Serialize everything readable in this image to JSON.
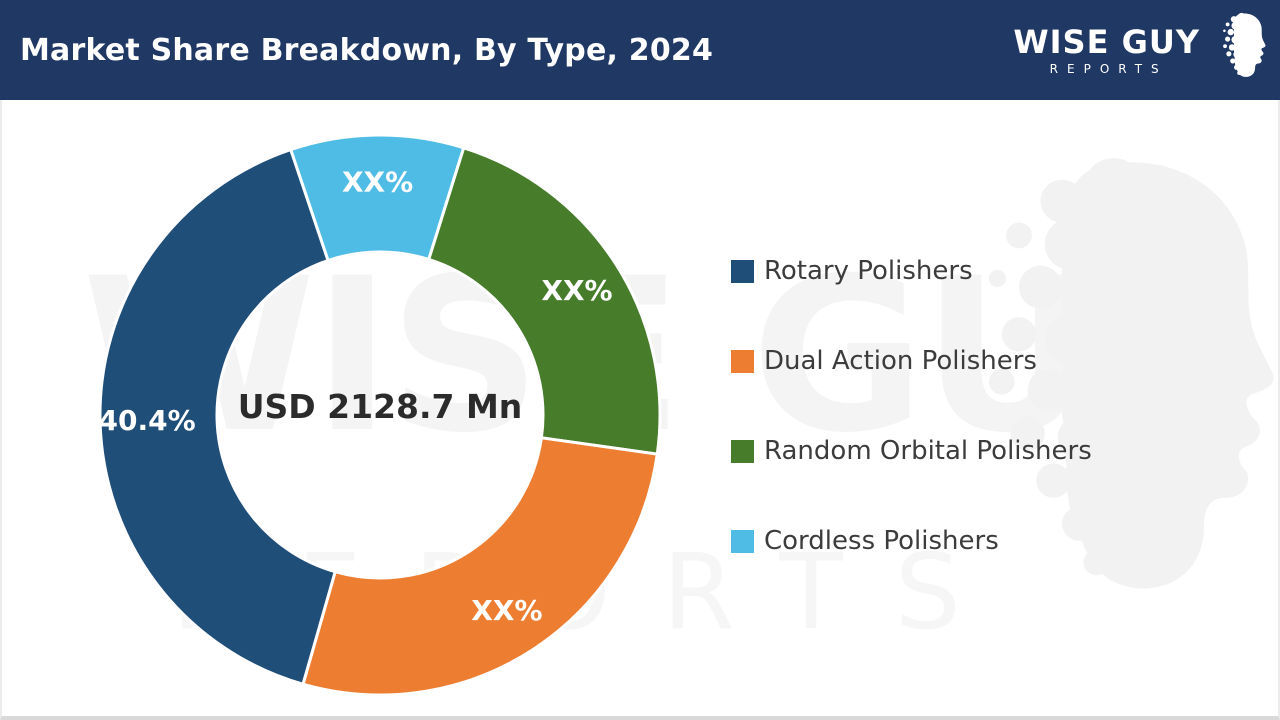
{
  "header": {
    "title": "Market Share Breakdown, By Type, 2024",
    "logo": {
      "name": "WISE GUY",
      "subname": "REPORTS"
    }
  },
  "watermark": {
    "line1": "WISE GUY",
    "line2": "REPORTS"
  },
  "chart_data": {
    "type": "pie",
    "subtype": "donut",
    "title": "Market Share Breakdown, By Type, 2024",
    "center_label": "USD 2128.7 Mn",
    "legend_position": "right",
    "start_angle_deg": -18.6,
    "clockwise_order": [
      "Cordless Polishers",
      "Random Orbital Polishers",
      "Dual Action Polishers",
      "Rotary Polishers"
    ],
    "segments": [
      {
        "label": "Rotary Polishers",
        "value_pct": 40.4,
        "display_label": "40.4%",
        "color": "#1F4E79"
      },
      {
        "label": "Dual Action Polishers",
        "value_pct": 27.2,
        "display_label": "XX%",
        "color": "#ED7D31"
      },
      {
        "label": "Random Orbital Polishers",
        "value_pct": 22.4,
        "display_label": "XX%",
        "color": "#477C2B"
      },
      {
        "label": "Cordless Polishers",
        "value_pct": 10.0,
        "display_label": "XX%",
        "color": "#4FBCE5"
      }
    ]
  }
}
